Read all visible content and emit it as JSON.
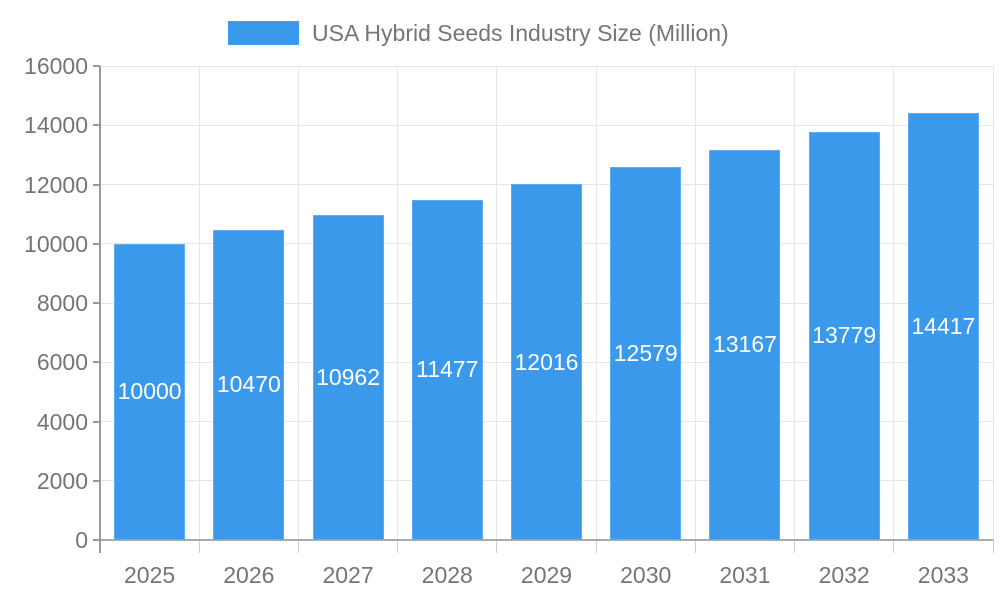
{
  "chart_data": {
    "type": "bar",
    "title": "USA Hybrid Seeds Industry Size (Million)",
    "legend_position": "top",
    "categories": [
      "2025",
      "2026",
      "2027",
      "2028",
      "2029",
      "2030",
      "2031",
      "2032",
      "2033"
    ],
    "values": [
      10000,
      10470,
      10962,
      11477,
      12016,
      12579,
      13167,
      13779,
      14417
    ],
    "value_labels": [
      "10000",
      "10470",
      "10962",
      "11477",
      "12016",
      "12579",
      "13167",
      "13779",
      "14417"
    ],
    "xlabel": "",
    "ylabel": "",
    "ylim": [
      0,
      16000
    ],
    "ytick_step": 2000,
    "ytick_labels": [
      "0",
      "2000",
      "4000",
      "6000",
      "8000",
      "10000",
      "12000",
      "14000",
      "16000"
    ],
    "grid": true,
    "colors": {
      "bar": "#3B99EC",
      "bar_border": "#5FACEF",
      "axis_text": "#757575",
      "grid_line": "#E6E6E6",
      "axis_line_y": "#999999",
      "axis_line_x": "#ABABAB",
      "tick_line_y": "#999999",
      "tick_line_x": "#CCCCCC",
      "value_label": "#FFFFFF",
      "background": "#FFFFFF"
    }
  }
}
